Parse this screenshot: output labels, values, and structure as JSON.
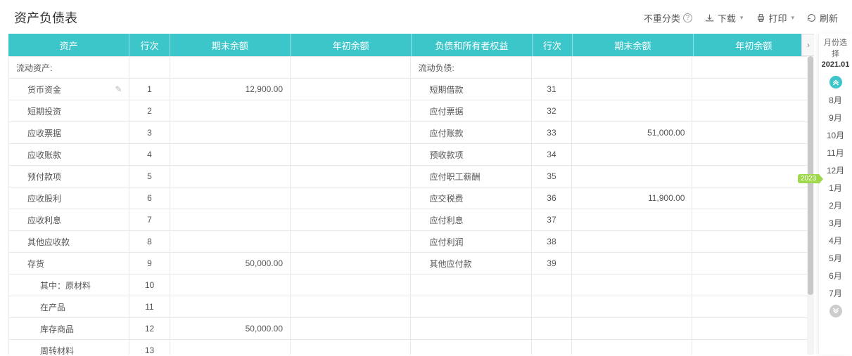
{
  "header": {
    "title": "资产负债表"
  },
  "toolbar": {
    "reclassify": "不重分类",
    "download": "下载",
    "print": "打印",
    "refresh": "刷新"
  },
  "table": {
    "colors": {
      "header_bg": "#3dc6c9",
      "header_text": "#ffffff",
      "border": "#e8e8e8"
    },
    "col_widths": {
      "asset": 168,
      "row": 56,
      "end": 168,
      "begin": 168,
      "liab": 168,
      "row2": 56,
      "end2": 168,
      "begin2": 168
    },
    "columns": [
      "资产",
      "行次",
      "期末余额",
      "年初余额",
      "负债和所有者权益",
      "行次",
      "期末余额",
      "年初余额"
    ],
    "rows": [
      {
        "asset": "流动资产:",
        "indent": 0,
        "rownum": "",
        "end": "",
        "begin": "",
        "liab": "流动负债:",
        "liab_indent": 0,
        "rownum2": "",
        "end2": "",
        "begin2": "",
        "edit": false
      },
      {
        "asset": "货币资金",
        "indent": 1,
        "rownum": "1",
        "end": "12,900.00",
        "begin": "",
        "liab": "短期借款",
        "liab_indent": 1,
        "rownum2": "31",
        "end2": "",
        "begin2": "",
        "edit": true
      },
      {
        "asset": "短期投资",
        "indent": 1,
        "rownum": "2",
        "end": "",
        "begin": "",
        "liab": "应付票据",
        "liab_indent": 1,
        "rownum2": "32",
        "end2": "",
        "begin2": "",
        "edit": false
      },
      {
        "asset": "应收票据",
        "indent": 1,
        "rownum": "3",
        "end": "",
        "begin": "",
        "liab": "应付账款",
        "liab_indent": 1,
        "rownum2": "33",
        "end2": "51,000.00",
        "begin2": "",
        "edit": false
      },
      {
        "asset": "应收账款",
        "indent": 1,
        "rownum": "4",
        "end": "",
        "begin": "",
        "liab": "预收款项",
        "liab_indent": 1,
        "rownum2": "34",
        "end2": "",
        "begin2": "",
        "edit": false
      },
      {
        "asset": "预付款项",
        "indent": 1,
        "rownum": "5",
        "end": "",
        "begin": "",
        "liab": "应付职工薪酬",
        "liab_indent": 1,
        "rownum2": "35",
        "end2": "",
        "begin2": "",
        "edit": false
      },
      {
        "asset": "应收股利",
        "indent": 1,
        "rownum": "6",
        "end": "",
        "begin": "",
        "liab": "应交税费",
        "liab_indent": 1,
        "rownum2": "36",
        "end2": "11,900.00",
        "begin2": "",
        "edit": false
      },
      {
        "asset": "应收利息",
        "indent": 1,
        "rownum": "7",
        "end": "",
        "begin": "",
        "liab": "应付利息",
        "liab_indent": 1,
        "rownum2": "37",
        "end2": "",
        "begin2": "",
        "edit": false
      },
      {
        "asset": "其他应收款",
        "indent": 1,
        "rownum": "8",
        "end": "",
        "begin": "",
        "liab": "应付利润",
        "liab_indent": 1,
        "rownum2": "38",
        "end2": "",
        "begin2": "",
        "edit": false
      },
      {
        "asset": "存货",
        "indent": 1,
        "rownum": "9",
        "end": "50,000.00",
        "begin": "",
        "liab": "其他应付款",
        "liab_indent": 1,
        "rownum2": "39",
        "end2": "",
        "begin2": "",
        "edit": false
      },
      {
        "asset": "其中：原材料",
        "indent": 2,
        "rownum": "10",
        "end": "",
        "begin": "",
        "liab": "",
        "liab_indent": 1,
        "rownum2": "",
        "end2": "",
        "begin2": "",
        "edit": false
      },
      {
        "asset": "在产品",
        "indent": 2,
        "rownum": "11",
        "end": "",
        "begin": "",
        "liab": "",
        "liab_indent": 1,
        "rownum2": "",
        "end2": "",
        "begin2": "",
        "edit": false
      },
      {
        "asset": "库存商品",
        "indent": 2,
        "rownum": "12",
        "end": "50,000.00",
        "begin": "",
        "liab": "",
        "liab_indent": 1,
        "rownum2": "",
        "end2": "",
        "begin2": "",
        "edit": false
      },
      {
        "asset": "周转材料",
        "indent": 2,
        "rownum": "13",
        "end": "",
        "begin": "",
        "liab": "",
        "liab_indent": 1,
        "rownum2": "",
        "end2": "",
        "begin2": "",
        "edit": false
      }
    ]
  },
  "sidebar": {
    "title": "月份选择",
    "current_date": "2021.01",
    "year_tag": "2023",
    "months": [
      "8月",
      "9月",
      "10月",
      "11月",
      "12月",
      "1月",
      "2月",
      "3月",
      "4月",
      "5月",
      "6月",
      "7月"
    ]
  }
}
